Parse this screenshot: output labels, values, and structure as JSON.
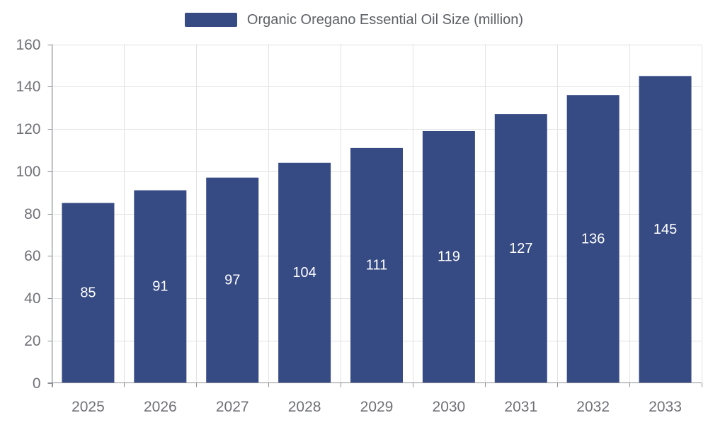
{
  "legend": {
    "label": "Organic Oregano Essential Oil Size (million)"
  },
  "chart_data": {
    "type": "bar",
    "title": "Organic Oregano Essential Oil Size (million)",
    "categories": [
      "2025",
      "2026",
      "2027",
      "2028",
      "2029",
      "2030",
      "2031",
      "2032",
      "2033"
    ],
    "values": [
      85,
      91,
      97,
      104,
      111,
      119,
      127,
      136,
      145
    ],
    "xlabel": "",
    "ylabel": "",
    "ylim": [
      0,
      160
    ],
    "ytick_step": 20,
    "yticks": [
      0,
      20,
      40,
      60,
      80,
      100,
      120,
      140,
      160
    ],
    "grid": true,
    "legend_position": "top-center",
    "value_labels": "inside-center",
    "colors": {
      "bar": "#364a84",
      "axis_line": "#8c8f94",
      "grid_line": "#e2e2e2",
      "tick_label": "#707175",
      "value_label": "#ffffff",
      "legend_text": "#5e6166",
      "background": "#ffffff"
    }
  }
}
